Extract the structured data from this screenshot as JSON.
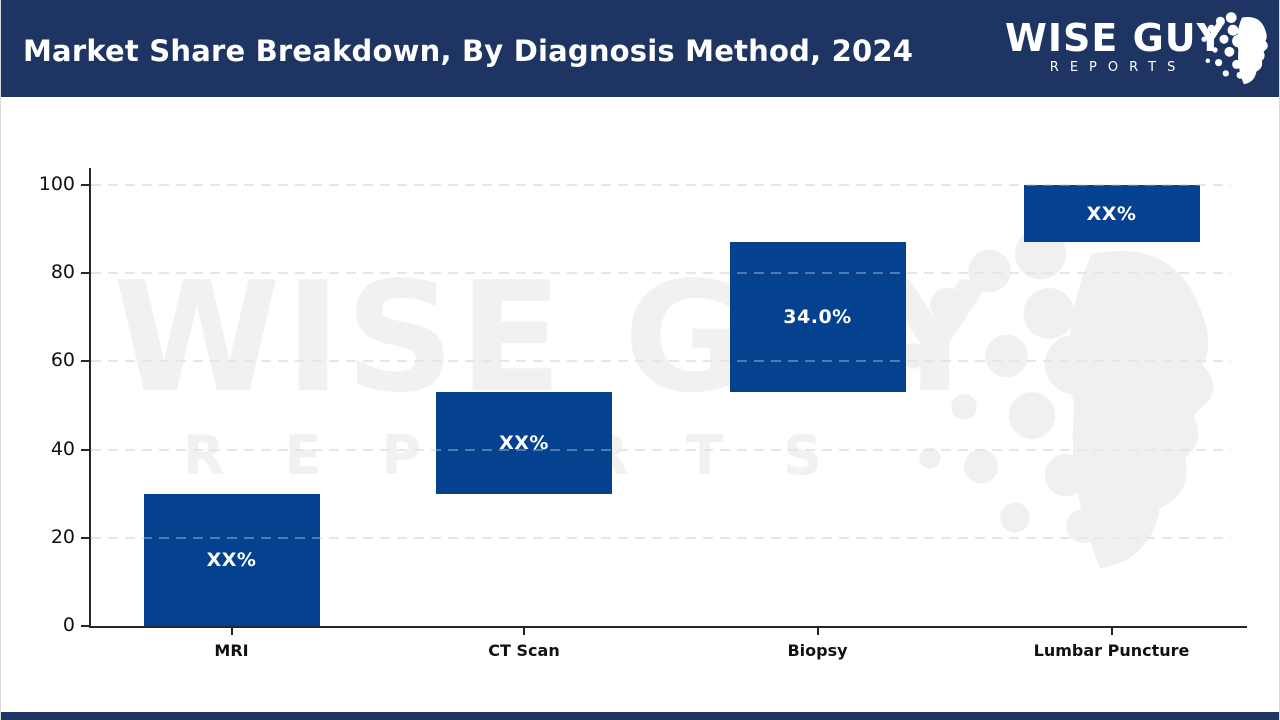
{
  "header": {
    "title": "Market Share Breakdown, By Diagnosis Method, 2024",
    "logo": {
      "line1": "WISE GUY",
      "line2": "REPORTS"
    }
  },
  "watermark": {
    "line1": "WISE GUY",
    "line2": "REPORTS"
  },
  "chart_data": {
    "type": "bar",
    "variant": "waterfall",
    "title": "Market Share Breakdown, By Diagnosis Method, 2024",
    "categories": [
      "MRI",
      "CT Scan",
      "Biopsy",
      "Lumbar Puncture"
    ],
    "segments": [
      {
        "category": "MRI",
        "start": 0,
        "end": 30,
        "label": "XX%"
      },
      {
        "category": "CT Scan",
        "start": 30,
        "end": 53,
        "label": "XX%"
      },
      {
        "category": "Biopsy",
        "start": 53,
        "end": 87,
        "label": "34.0%"
      },
      {
        "category": "Lumbar Puncture",
        "start": 87,
        "end": 100,
        "label": "XX%"
      }
    ],
    "ylim": [
      0,
      100
    ],
    "yticks": [
      0,
      20,
      40,
      60,
      80,
      100
    ],
    "xlabel": "",
    "ylabel": "",
    "grid": "horizontal-dashed",
    "legend": "none",
    "bar_color": "#04418f",
    "bar_label_color": "#ffffff"
  },
  "colors": {
    "header_bg": "#1e3462",
    "footer_bg": "#1e3462",
    "bar": "#04418f",
    "grid": "#dcdcdc",
    "axis": "#262626",
    "watermark": "#f1f1f1",
    "title_text": "#ffffff"
  }
}
